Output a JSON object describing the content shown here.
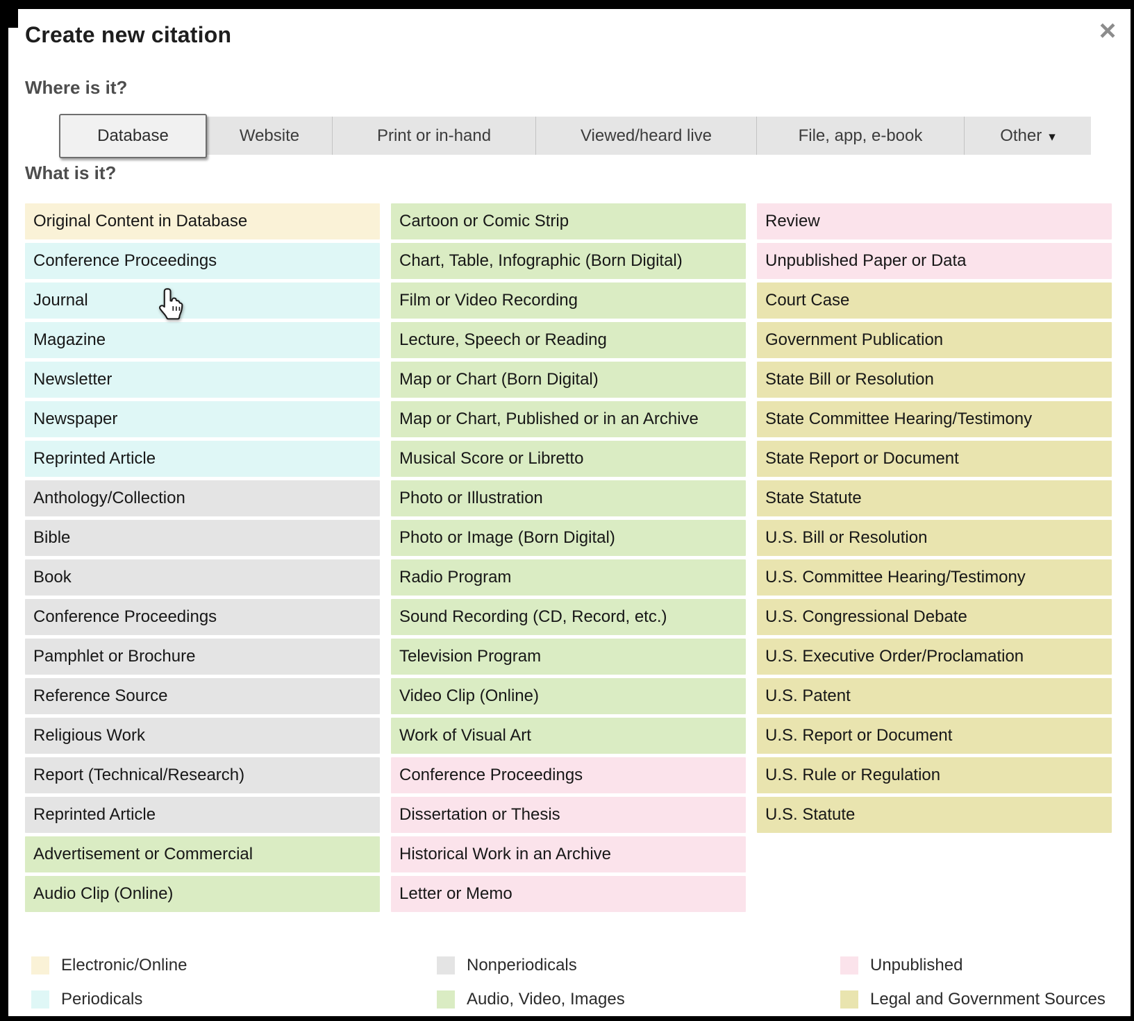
{
  "dialog": {
    "title": "Create new citation",
    "where_label": "Where is it?",
    "what_label": "What is it?",
    "tabs": [
      {
        "label": "Database",
        "selected": true
      },
      {
        "label": "Website",
        "selected": false
      },
      {
        "label": "Print or in-hand",
        "selected": false
      },
      {
        "label": "Viewed/heard live",
        "selected": false
      },
      {
        "label": "File, app, e-book",
        "selected": false
      },
      {
        "label": "Other",
        "selected": false,
        "dropdown": true
      }
    ]
  },
  "icons": {
    "close": "×",
    "dropdown": "▾"
  },
  "categories": {
    "electronic": {
      "label": "Electronic/Online",
      "color": "#faf2d7"
    },
    "periodicals": {
      "label": "Periodicals",
      "color": "#dff7f6"
    },
    "nonperiodicals": {
      "label": "Nonperiodicals",
      "color": "#e4e4e4"
    },
    "audio_video": {
      "label": "Audio, Video, Images",
      "color": "#daecc3"
    },
    "unpublished": {
      "label": "Unpublished",
      "color": "#fbe3eb"
    },
    "legal": {
      "label": "Legal and Government Sources",
      "color": "#e9e4af"
    }
  },
  "legend_columns": [
    [
      "electronic",
      "periodicals"
    ],
    [
      "nonperiodicals",
      "audio_video"
    ],
    [
      "unpublished",
      "legal"
    ]
  ],
  "columns": [
    {
      "items": [
        {
          "label": "Original Content in Database",
          "category": "electronic"
        },
        {
          "label": "Conference Proceedings",
          "category": "periodicals"
        },
        {
          "label": "Journal",
          "category": "periodicals"
        },
        {
          "label": "Magazine",
          "category": "periodicals"
        },
        {
          "label": "Newsletter",
          "category": "periodicals"
        },
        {
          "label": "Newspaper",
          "category": "periodicals"
        },
        {
          "label": "Reprinted Article",
          "category": "periodicals"
        },
        {
          "label": "Anthology/Collection",
          "category": "nonperiodicals"
        },
        {
          "label": "Bible",
          "category": "nonperiodicals"
        },
        {
          "label": "Book",
          "category": "nonperiodicals"
        },
        {
          "label": "Conference Proceedings",
          "category": "nonperiodicals"
        },
        {
          "label": "Pamphlet or Brochure",
          "category": "nonperiodicals"
        },
        {
          "label": "Reference Source",
          "category": "nonperiodicals"
        },
        {
          "label": "Religious Work",
          "category": "nonperiodicals"
        },
        {
          "label": "Report (Technical/Research)",
          "category": "nonperiodicals"
        },
        {
          "label": "Reprinted Article",
          "category": "nonperiodicals"
        },
        {
          "label": "Advertisement or Commercial",
          "category": "audio_video"
        },
        {
          "label": "Audio Clip (Online)",
          "category": "audio_video"
        }
      ]
    },
    {
      "items": [
        {
          "label": "Cartoon or Comic Strip",
          "category": "audio_video"
        },
        {
          "label": "Chart, Table, Infographic (Born Digital)",
          "category": "audio_video"
        },
        {
          "label": "Film or Video Recording",
          "category": "audio_video"
        },
        {
          "label": "Lecture, Speech or Reading",
          "category": "audio_video"
        },
        {
          "label": "Map or Chart (Born Digital)",
          "category": "audio_video"
        },
        {
          "label": "Map or Chart, Published or in an Archive",
          "category": "audio_video"
        },
        {
          "label": "Musical Score or Libretto",
          "category": "audio_video"
        },
        {
          "label": "Photo or Illustration",
          "category": "audio_video"
        },
        {
          "label": "Photo or Image (Born Digital)",
          "category": "audio_video"
        },
        {
          "label": "Radio Program",
          "category": "audio_video"
        },
        {
          "label": "Sound Recording (CD, Record, etc.)",
          "category": "audio_video"
        },
        {
          "label": "Television Program",
          "category": "audio_video"
        },
        {
          "label": "Video Clip (Online)",
          "category": "audio_video"
        },
        {
          "label": "Work of Visual Art",
          "category": "audio_video"
        },
        {
          "label": "Conference Proceedings",
          "category": "unpublished"
        },
        {
          "label": "Dissertation or Thesis",
          "category": "unpublished"
        },
        {
          "label": "Historical Work in an Archive",
          "category": "unpublished"
        },
        {
          "label": "Letter or Memo",
          "category": "unpublished"
        }
      ]
    },
    {
      "items": [
        {
          "label": "Review",
          "category": "unpublished"
        },
        {
          "label": "Unpublished Paper or Data",
          "category": "unpublished"
        },
        {
          "label": "Court Case",
          "category": "legal"
        },
        {
          "label": "Government Publication",
          "category": "legal"
        },
        {
          "label": "State Bill or Resolution",
          "category": "legal"
        },
        {
          "label": "State Committee Hearing/Testimony",
          "category": "legal"
        },
        {
          "label": "State Report or Document",
          "category": "legal"
        },
        {
          "label": "State Statute",
          "category": "legal"
        },
        {
          "label": "U.S. Bill or Resolution",
          "category": "legal"
        },
        {
          "label": "U.S. Committee Hearing/Testimony",
          "category": "legal"
        },
        {
          "label": "U.S. Congressional Debate",
          "category": "legal"
        },
        {
          "label": "U.S. Executive Order/Proclamation",
          "category": "legal"
        },
        {
          "label": "U.S. Patent",
          "category": "legal"
        },
        {
          "label": "U.S. Report or Document",
          "category": "legal"
        },
        {
          "label": "U.S. Rule or Regulation",
          "category": "legal"
        },
        {
          "label": "U.S. Statute",
          "category": "legal"
        }
      ]
    }
  ]
}
